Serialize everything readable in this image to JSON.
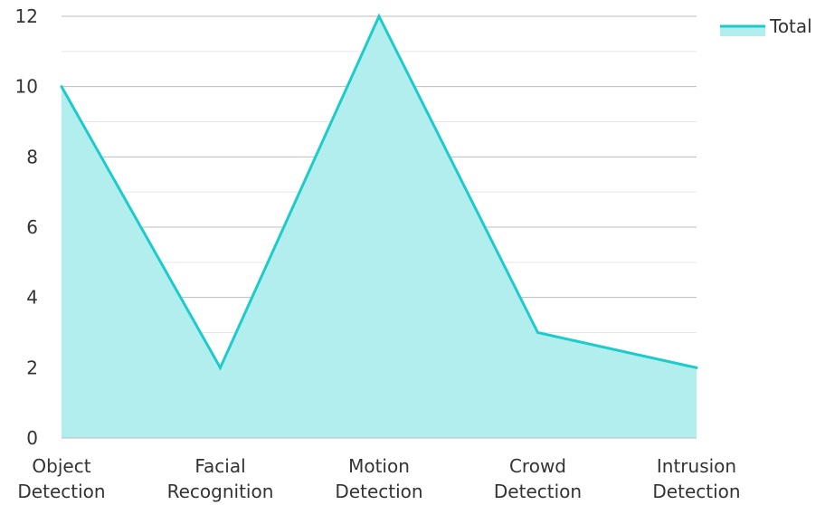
{
  "chart_data": {
    "type": "area",
    "categories": [
      [
        "Object",
        "Detection"
      ],
      [
        "Facial",
        "Recognition"
      ],
      [
        "Motion",
        "Detection"
      ],
      [
        "Crowd",
        "Detection"
      ],
      [
        "Intrusion",
        "Detection"
      ]
    ],
    "series": [
      {
        "name": "Total",
        "values": [
          10,
          2,
          12,
          3,
          2
        ],
        "color": "#1ECBCB",
        "fill": "#B2EEEE"
      }
    ],
    "ylim": [
      0,
      12
    ],
    "yticks": [
      0,
      2,
      4,
      6,
      8,
      10,
      12
    ],
    "grid": true,
    "minor_grid": true,
    "legend_position": "top-right",
    "title": "",
    "xlabel": "",
    "ylabel": ""
  }
}
